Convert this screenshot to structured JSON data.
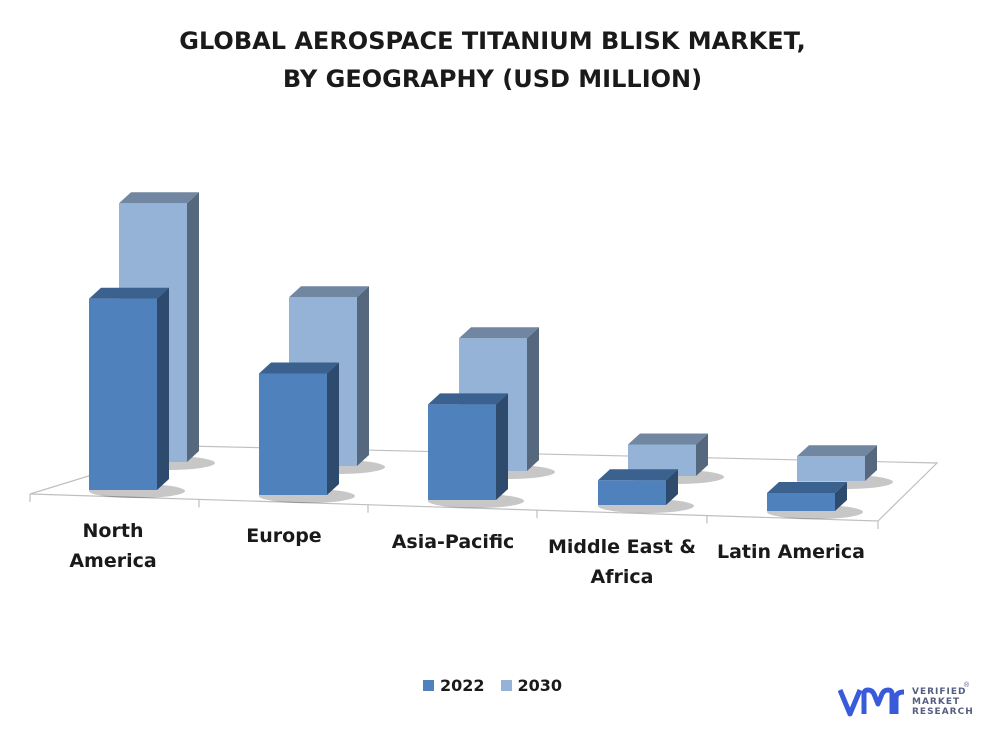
{
  "chart_data": {
    "type": "bar",
    "title_lines": [
      "GLOBAL AEROSPACE TITANIUM BLISK MARKET,",
      "BY GEOGRAPHY (USD MILLION)"
    ],
    "categories": [
      "North America",
      "Europe",
      "Asia-Pacific",
      "Middle East & Africa",
      "Latin America"
    ],
    "category_lines": [
      [
        "North",
        "America"
      ],
      [
        "Europe"
      ],
      [
        "Asia-Pacific"
      ],
      [
        "Middle East &",
        "Africa"
      ],
      [
        "Latin America"
      ]
    ],
    "series": [
      {
        "name": "2022",
        "values": [
          170,
          108,
          85,
          22,
          16
        ],
        "color": "#4f81bd"
      },
      {
        "name": "2030",
        "values": [
          230,
          150,
          118,
          28,
          22
        ],
        "color": "#95b3d7"
      }
    ],
    "ylim": [
      0,
      240
    ],
    "legend_position": "bottom",
    "grid": false
  },
  "brand": {
    "name_lines": [
      "VERIFIED",
      "MARKET",
      "RESEARCH"
    ],
    "registered": "®",
    "color": "#3a5bd9"
  }
}
